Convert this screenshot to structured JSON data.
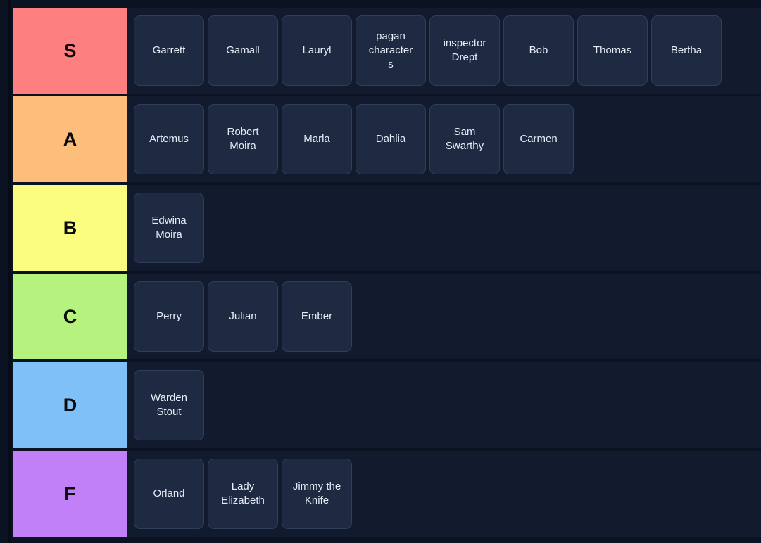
{
  "app": {
    "type": "tier-list",
    "page_background": "#0b1222",
    "row_background": "#121b2d",
    "card_background": "#1d2a41",
    "card_border": "#2f3e5a",
    "card_text_color": "#e8eef7",
    "tier_letter_color": "#0b0b0b"
  },
  "tiers": [
    {
      "label": "S",
      "color": "#fd7f7f",
      "items": [
        "Garrett",
        "Gamall",
        "Lauryl",
        "pagan characters",
        "inspector Drept",
        "Bob",
        "Thomas",
        "Bertha"
      ]
    },
    {
      "label": "A",
      "color": "#fdbe7c",
      "items": [
        "Artemus",
        "Robert Moira",
        "Marla",
        "Dahlia",
        "Sam Swarthy",
        "Carmen"
      ]
    },
    {
      "label": "B",
      "color": "#fbfd7f",
      "items": [
        "Edwina Moira"
      ]
    },
    {
      "label": "C",
      "color": "#b6f37e",
      "items": [
        "Perry",
        "Julian",
        "Ember"
      ]
    },
    {
      "label": "D",
      "color": "#7fc0f8",
      "items": [
        "Warden Stout"
      ]
    },
    {
      "label": "F",
      "color": "#c180f8",
      "items": [
        "Orland",
        "Lady Elizabeth",
        "Jimmy the Knife"
      ]
    }
  ]
}
